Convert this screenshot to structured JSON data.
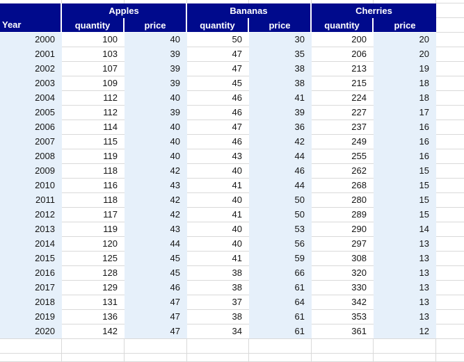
{
  "sheet": {
    "corner_label": "Year",
    "groups": [
      {
        "label": "Apples",
        "sub": [
          "quantity",
          "price"
        ]
      },
      {
        "label": "Bananas",
        "sub": [
          "quantity",
          "price"
        ]
      },
      {
        "label": "Cherries",
        "sub": [
          "quantity",
          "price"
        ]
      }
    ],
    "row_columns": [
      "year",
      "apples_quantity",
      "apples_price",
      "bananas_quantity",
      "bananas_price",
      "cherries_quantity",
      "cherries_price"
    ],
    "rows": [
      [
        2000,
        100,
        40,
        50,
        30,
        200,
        20
      ],
      [
        2001,
        103,
        39,
        47,
        35,
        206,
        20
      ],
      [
        2002,
        107,
        39,
        47,
        38,
        213,
        19
      ],
      [
        2003,
        109,
        39,
        45,
        38,
        215,
        18
      ],
      [
        2004,
        112,
        40,
        46,
        41,
        224,
        18
      ],
      [
        2005,
        112,
        39,
        46,
        39,
        227,
        17
      ],
      [
        2006,
        114,
        40,
        47,
        36,
        237,
        16
      ],
      [
        2007,
        115,
        40,
        46,
        42,
        249,
        16
      ],
      [
        2008,
        119,
        40,
        43,
        44,
        255,
        16
      ],
      [
        2009,
        118,
        42,
        40,
        46,
        262,
        15
      ],
      [
        2010,
        116,
        43,
        41,
        44,
        268,
        15
      ],
      [
        2011,
        118,
        42,
        40,
        50,
        280,
        15
      ],
      [
        2012,
        117,
        42,
        41,
        50,
        289,
        15
      ],
      [
        2013,
        119,
        43,
        40,
        53,
        290,
        14
      ],
      [
        2014,
        120,
        44,
        40,
        56,
        297,
        13
      ],
      [
        2015,
        125,
        45,
        41,
        59,
        308,
        13
      ],
      [
        2016,
        128,
        45,
        38,
        66,
        320,
        13
      ],
      [
        2017,
        129,
        46,
        38,
        61,
        330,
        13
      ],
      [
        2018,
        131,
        47,
        37,
        64,
        342,
        13
      ],
      [
        2019,
        136,
        47,
        38,
        61,
        353,
        13
      ],
      [
        2020,
        142,
        47,
        34,
        61,
        361,
        12
      ]
    ]
  },
  "colors": {
    "header_bg": "#000A8C",
    "header_text": "#FFFFFF",
    "band_fill": "#E6F0FA",
    "gridline": "#D9D9D9",
    "text": "#141414",
    "sheet_bg": "#FFFFFF"
  }
}
